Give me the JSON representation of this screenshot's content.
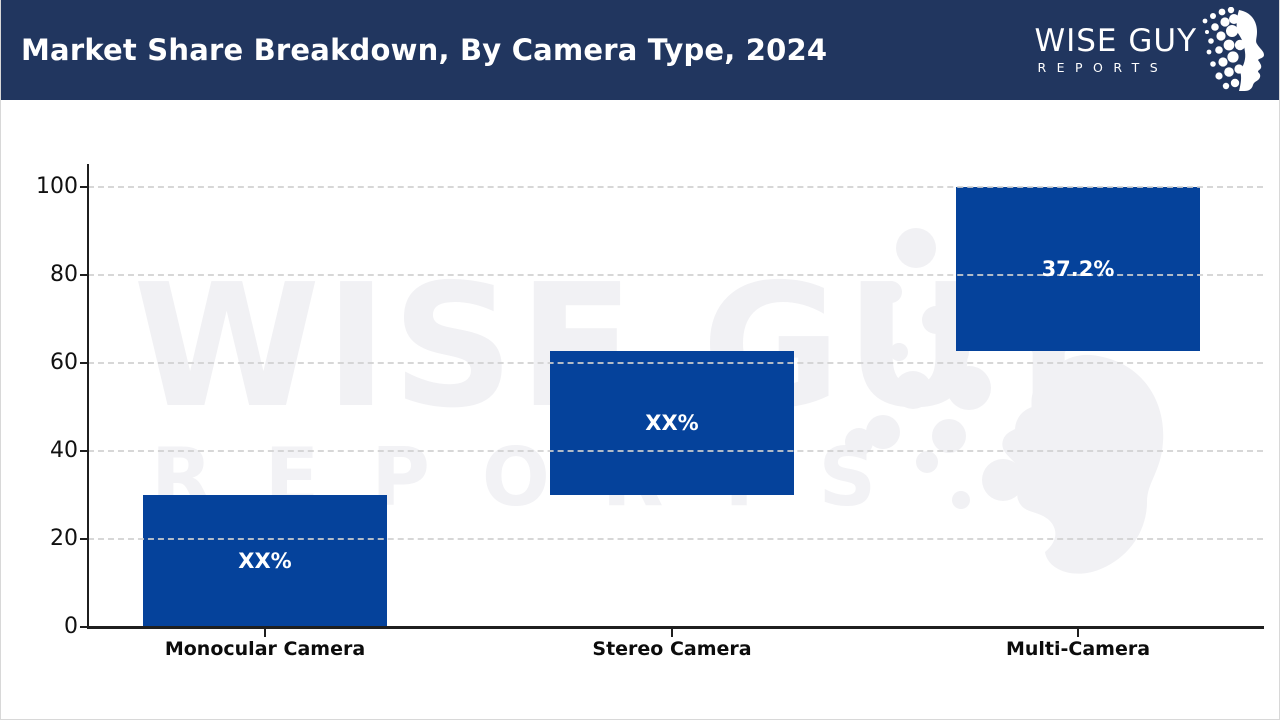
{
  "header": {
    "title": "Market Share Breakdown, By Camera Type, 2024",
    "logo": {
      "wordmark": "WISE GUY",
      "subtitle": "REPORTS"
    }
  },
  "watermark": {
    "wordmark": "WISE GUY",
    "subtitle": "REPORTS"
  },
  "colors": {
    "header_bg": "#21365f",
    "bar": "#05429b",
    "grid": "#d0d0d0",
    "axis": "#1f1f1f",
    "watermark": "#f1f1f4"
  },
  "chart_data": {
    "type": "bar",
    "subtype": "floating-waterfall",
    "title": "Market Share Breakdown, By Camera Type, 2024",
    "categories": [
      "Monocular Camera",
      "Stereo Camera",
      "Multi-Camera"
    ],
    "segments": [
      {
        "category": "Monocular Camera",
        "start": 0,
        "end": 30,
        "value_label": "XX%"
      },
      {
        "category": "Stereo Camera",
        "start": 30,
        "end": 62.8,
        "value_label": "XX%"
      },
      {
        "category": "Multi-Camera",
        "start": 62.8,
        "end": 100,
        "value_label": "37.2%"
      }
    ],
    "xlabel": "",
    "ylabel": "",
    "yticks": [
      0,
      20,
      40,
      60,
      80,
      100
    ],
    "ylim": [
      0,
      105
    ],
    "grid": "dashed-horizontal",
    "legend": "none",
    "unit": "percent"
  }
}
